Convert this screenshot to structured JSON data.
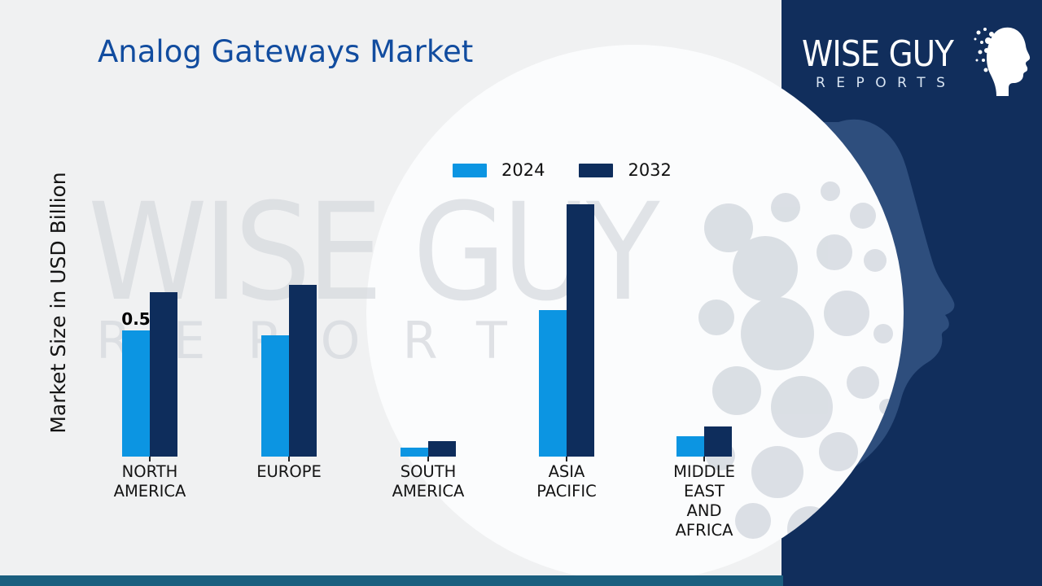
{
  "title": "Analog Gateways Market",
  "logo": {
    "name": "WISE GUY",
    "tagline": "REPORTS"
  },
  "watermark": {
    "name": "WISE GUY",
    "tagline": "REPORTS"
  },
  "legend": {
    "items": [
      {
        "label": "2024",
        "color": "#0c95e2"
      },
      {
        "label": "2032",
        "color": "#0e2d5c"
      }
    ]
  },
  "chart_data": {
    "type": "bar",
    "title": "Analog Gateways Market",
    "xlabel": "",
    "ylabel": "Market Size in USD Billion",
    "categories": [
      "NORTH AMERICA",
      "EUROPE",
      "SOUTH AMERICA",
      "ASIA PACIFIC",
      "MIDDLE EAST AND AFRICA"
    ],
    "category_lines": [
      [
        "NORTH",
        "AMERICA"
      ],
      [
        "EUROPE"
      ],
      [
        "SOUTH",
        "AMERICA"
      ],
      [
        "ASIA",
        "PACIFIC"
      ],
      [
        "MIDDLE",
        "EAST",
        "AND",
        "AFRICA"
      ]
    ],
    "series": [
      {
        "name": "2024",
        "color": "#0c95e2",
        "values": [
          0.5,
          0.48,
          0.035,
          0.58,
          0.08
        ]
      },
      {
        "name": "2032",
        "color": "#0e2d5c",
        "values": [
          0.65,
          0.68,
          0.06,
          1.0,
          0.12
        ]
      }
    ],
    "ylim": [
      0,
      1.05
    ],
    "grid": false,
    "legend_position": "top-center",
    "data_labels": [
      {
        "series": "2024",
        "category": "NORTH AMERICA",
        "text": "0.5"
      }
    ]
  },
  "colors": {
    "background": "#f0f1f2",
    "navy_panel": "#112e5c",
    "teal_strip": "#1b5f7f",
    "title": "#114c9f",
    "bar_2024": "#0c95e2",
    "bar_2032": "#0e2d5c",
    "watermark": "#d6d9de",
    "face_slate": "#2e4e7d",
    "circle": "#fbfcfd",
    "axis_text": "#141414"
  }
}
